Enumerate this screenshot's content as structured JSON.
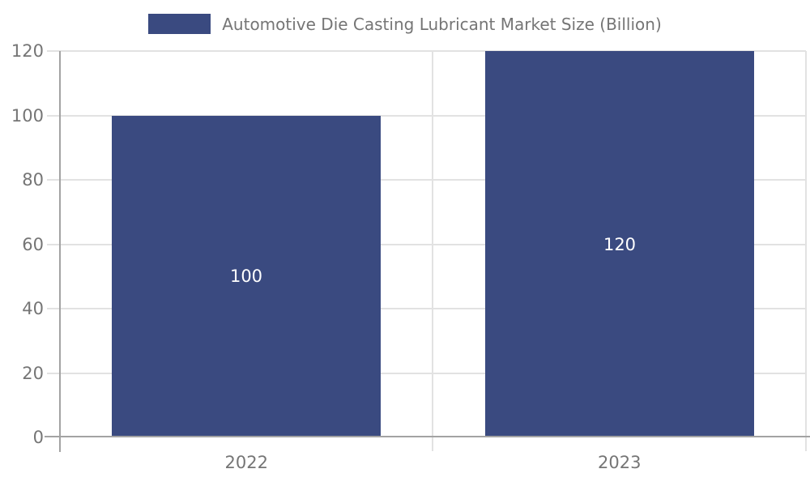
{
  "chart_data": {
    "type": "bar",
    "title": "Automotive Die Casting Lubricant Market Size (Billion)",
    "categories": [
      "2022",
      "2023"
    ],
    "values": [
      100,
      120
    ],
    "bar_value_labels": [
      "100",
      "120"
    ],
    "xlabel": "",
    "ylabel": "",
    "ylim": [
      0,
      120
    ],
    "yticks": [
      0,
      20,
      40,
      60,
      80,
      100,
      120
    ],
    "grid": true,
    "legend_position": "top-center"
  },
  "legend": {
    "label": "Automotive Die Casting Lubricant Market Size (Billion)"
  },
  "colors": {
    "bar": "#3a4a80",
    "bar_value_text": "#ffffff",
    "axis_line": "#a3a3a3",
    "gridline": "#e2e2e2",
    "tick_label_text": "#757575",
    "background": "#ffffff"
  }
}
